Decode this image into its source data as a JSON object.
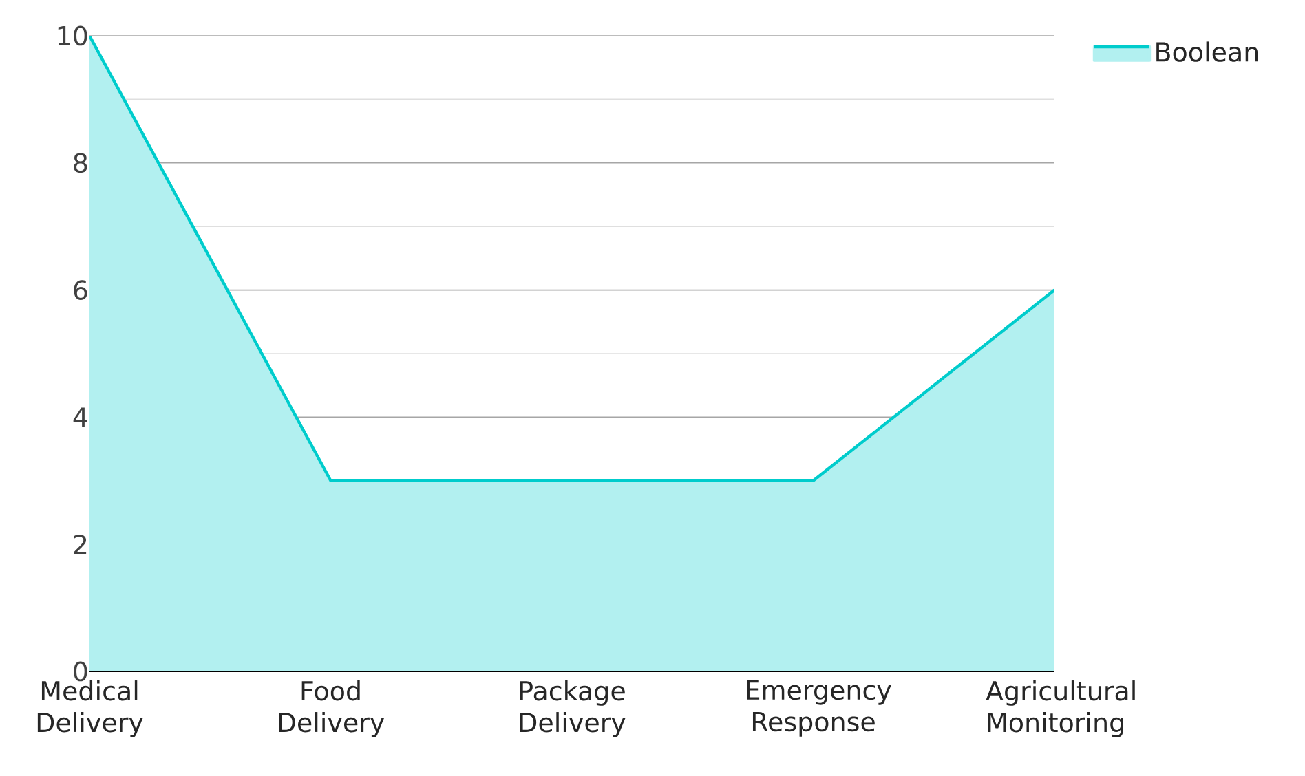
{
  "chart_data": {
    "type": "area",
    "categories": [
      "Medical Delivery",
      "Food Delivery",
      "Package Delivery",
      "Emergency Response",
      "Agricultural Monitoring"
    ],
    "series": [
      {
        "name": "Boolean",
        "color": "#00cccc",
        "values": [
          10,
          3,
          3,
          3,
          6
        ]
      }
    ],
    "ylim": [
      0,
      10
    ],
    "yticks": [
      0,
      2,
      4,
      6,
      8,
      10
    ],
    "grid": "y",
    "legend": "top right"
  }
}
